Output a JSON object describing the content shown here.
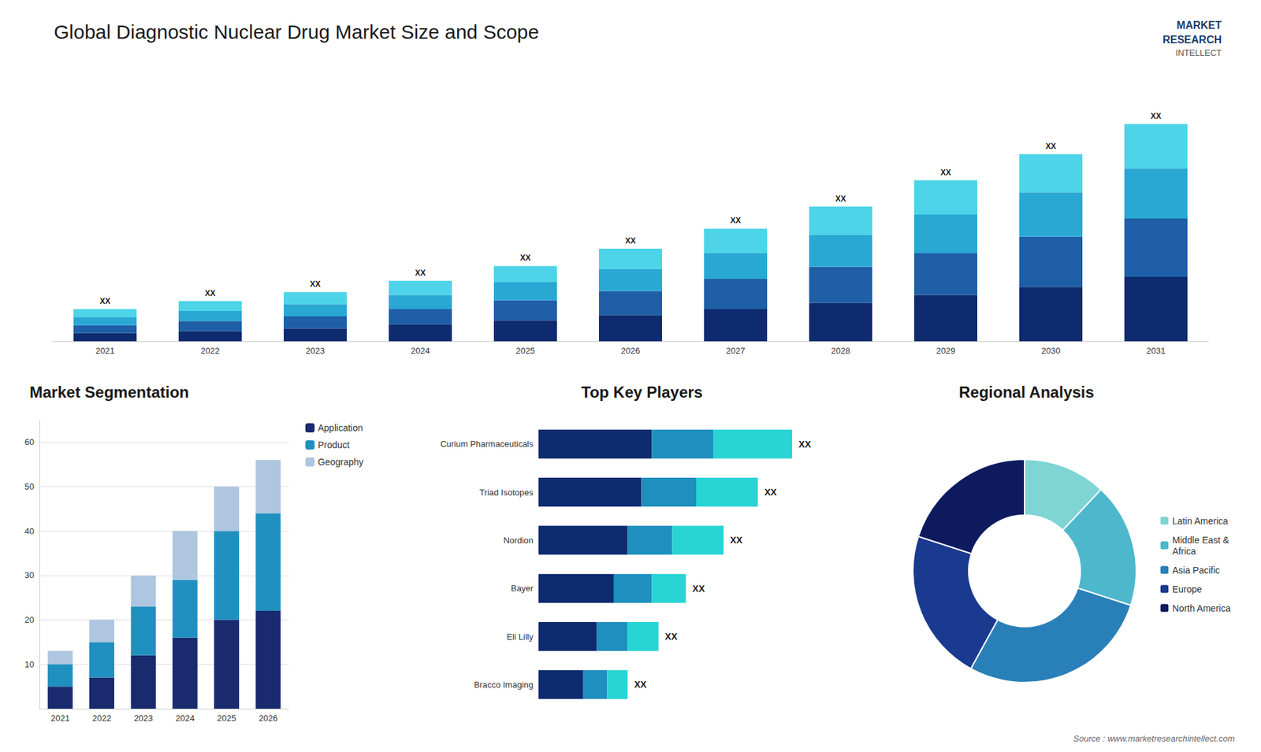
{
  "chart_data": [
    {
      "type": "bar",
      "title": "Global Diagnostic Nuclear Drug Market Size and Scope",
      "categories": [
        "2021",
        "2022",
        "2023",
        "2024",
        "2025",
        "2026",
        "2027",
        "2028",
        "2029",
        "2030",
        "2031"
      ],
      "stacked": true,
      "series": [
        {
          "color": "#0d2b6e",
          "values": [
            2,
            2.5,
            3.2,
            4.2,
            5.2,
            6.5,
            8,
            9.5,
            11.5,
            13.5,
            16
          ]
        },
        {
          "color": "#1e5fa8",
          "values": [
            2,
            2.5,
            3,
            3.8,
            5,
            6,
            7.5,
            9,
            10.5,
            12.5,
            14.5
          ]
        },
        {
          "color": "#29a8d4",
          "values": [
            2,
            2.5,
            3,
            3.5,
            4.5,
            5.5,
            6.5,
            8,
            9.5,
            11,
            12.5
          ]
        },
        {
          "color": "#4dd4e8",
          "values": [
            2,
            2.5,
            3,
            3.5,
            4,
            5,
            6,
            7,
            8.5,
            9.5,
            11
          ]
        }
      ],
      "annotations": [
        "XX",
        "XX",
        "XX",
        "XX",
        "XX",
        "XX",
        "XX",
        "XX",
        "XX",
        "XX",
        "XX"
      ],
      "ylim": [
        0,
        62
      ],
      "tick_labels": "x",
      "grid": false
    },
    {
      "type": "bar",
      "title": "Market Segmentation",
      "categories": [
        "2021",
        "2022",
        "2023",
        "2024",
        "2025",
        "2026"
      ],
      "stacked": true,
      "series": [
        {
          "name": "Application",
          "color": "#1a2a6e",
          "values": [
            5,
            7,
            12,
            16,
            20,
            22
          ]
        },
        {
          "name": "Product",
          "color": "#2090c0",
          "values": [
            5,
            8,
            11,
            13,
            20,
            22
          ]
        },
        {
          "name": "Geography",
          "color": "#aec6e0",
          "values": [
            3,
            5,
            7,
            11,
            10,
            12
          ]
        }
      ],
      "ylim": [
        0,
        65
      ],
      "yticks": [
        10,
        20,
        30,
        40,
        50,
        60
      ],
      "grid": true,
      "legend": "right"
    },
    {
      "type": "bar",
      "orientation": "horizontal",
      "title": "Top Key Players",
      "categories": [
        "Curium Pharmaceuticals",
        "Triad Isotopes",
        "Nordion",
        "Bayer",
        "Eli Lilly",
        "Bracco Imaging"
      ],
      "stacked": true,
      "series": [
        {
          "color": "#0d2b6e",
          "values": [
            33,
            30,
            26,
            22,
            17,
            13
          ]
        },
        {
          "color": "#1e8fbf",
          "values": [
            18,
            16,
            13,
            11,
            9,
            7
          ]
        },
        {
          "color": "#29d4d4",
          "values": [
            23,
            18,
            15,
            10,
            9,
            6
          ]
        }
      ],
      "annotations": [
        "XX",
        "XX",
        "XX",
        "XX",
        "XX",
        "XX"
      ],
      "xlim": [
        0,
        92
      ],
      "tick_labels": "y",
      "grid": false
    },
    {
      "type": "pie",
      "title": "Regional Analysis",
      "categories": [
        "Latin America",
        "Middle East &\nAfrica",
        "Asia Pacific",
        "Europe",
        "North America"
      ],
      "values": [
        12,
        18,
        28,
        22,
        20
      ],
      "colors": [
        "#7fd4d4",
        "#4db8cc",
        "#2980b9",
        "#1a3a8f",
        "#0d1b5e"
      ],
      "legend": "right",
      "annotations": [
        "MARKET",
        "RESEARCH",
        "INTELLECT",
        "Source : www.marketresearchintellect.com"
      ]
    }
  ]
}
